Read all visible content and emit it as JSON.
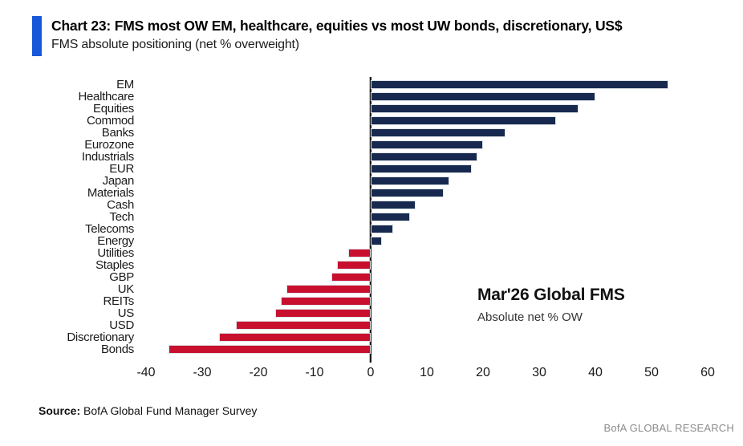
{
  "header": {
    "title": "Chart 23: FMS most OW EM, healthcare, equities vs most UW bonds, discretionary, US$",
    "subtitle": "FMS absolute positioning (net % overweight)",
    "accent_color": "#1758D8"
  },
  "chart_data": {
    "type": "bar",
    "orientation": "horizontal",
    "title": "Chart 23: FMS most OW EM, healthcare, equities vs most UW bonds, discretionary, US$",
    "subtitle": "FMS absolute positioning (net % overweight)",
    "categories": [
      "EM",
      "Healthcare",
      "Equities",
      "Commod",
      "Banks",
      "Eurozone",
      "Industrials",
      "EUR",
      "Japan",
      "Materials",
      "Cash",
      "Tech",
      "Telecoms",
      "Energy",
      "Utilities",
      "Staples",
      "GBP",
      "UK",
      "REITs",
      "US",
      "USD",
      "Discretionary",
      "Bonds"
    ],
    "values": [
      53,
      40,
      37,
      33,
      24,
      20,
      19,
      18,
      14,
      13,
      8,
      7,
      4,
      2,
      -4,
      -6,
      -7,
      -15,
      -16,
      -17,
      -24,
      -27,
      -36
    ],
    "xlim": [
      -40,
      60
    ],
    "x_ticks": [
      -40,
      -30,
      -20,
      -10,
      0,
      10,
      20,
      30,
      40,
      50,
      60
    ],
    "grid": false,
    "legend": "none",
    "positive_color": "#17294E",
    "negative_color": "#C8102E",
    "annotation": {
      "line1": "Mar'26 Global FMS",
      "line2": "Absolute net % OW"
    }
  },
  "footer": {
    "source_label": "Source:",
    "source_text": " BofA Global Fund Manager Survey",
    "brand": "BofA GLOBAL RESEARCH"
  }
}
